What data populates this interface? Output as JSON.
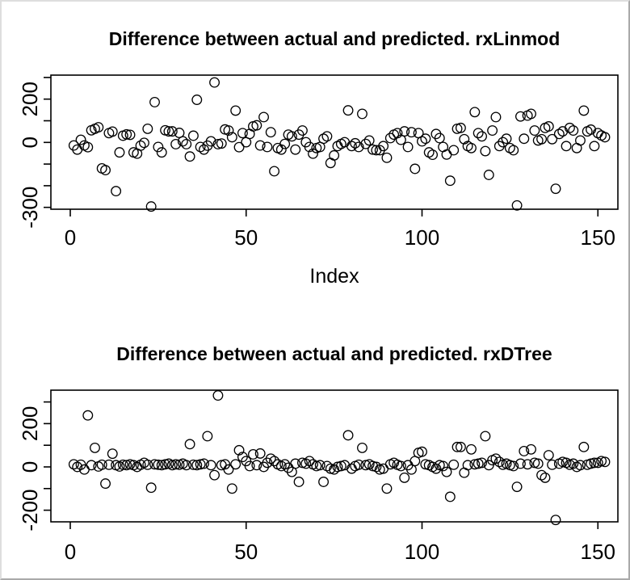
{
  "figure": {
    "background": "#ffffff",
    "frame_color": "#a9a9a9",
    "ink_color": "#000000",
    "marker": "open-circle"
  },
  "chart_data": [
    {
      "type": "scatter",
      "title": "Difference between actual and predicted. rxLinmod",
      "xlabel": "Index",
      "ylabel": "",
      "legend": "none",
      "grid": false,
      "xlim": [
        -5.5,
        155.7
      ],
      "ylim": [
        -308,
        311
      ],
      "x_is_row_index": true,
      "x_ticks": [
        {
          "v": 0,
          "label": "0"
        },
        {
          "v": 50,
          "label": "50"
        },
        {
          "v": 100,
          "label": "100"
        },
        {
          "v": 150,
          "label": "150"
        }
      ],
      "y_ticks": [
        {
          "v": 300,
          "label": ""
        },
        {
          "v": 200,
          "label": "200"
        },
        {
          "v": 100,
          "label": ""
        },
        {
          "v": 0,
          "label": "0"
        },
        {
          "v": -100,
          "label": ""
        },
        {
          "v": -200,
          "label": ""
        },
        {
          "v": -300,
          "label": "-300"
        }
      ],
      "values": [
        -14,
        -33,
        12,
        -14,
        -22,
        56,
        63,
        70,
        -120,
        -128,
        43,
        50,
        -225,
        -46,
        31,
        37,
        35,
        -46,
        -52,
        -15,
        -2,
        63,
        -296,
        186,
        -21,
        -46,
        56,
        51,
        51,
        -8,
        44,
        5,
        -8,
        -65,
        31,
        197,
        -21,
        -33,
        -15,
        5,
        277,
        -8,
        -5,
        60,
        55,
        24,
        147,
        -22,
        43,
        1,
        39,
        74,
        79,
        -14,
        117,
        -21,
        47,
        -133,
        -26,
        -33,
        -7,
        36,
        28,
        -33,
        36,
        55,
        1,
        -21,
        -52,
        -26,
        -21,
        17,
        28,
        -95,
        -60,
        -17,
        -7,
        1,
        148,
        -17,
        -4,
        -21,
        132,
        -7,
        9,
        -33,
        -36,
        -36,
        -17,
        -71,
        20,
        36,
        43,
        12,
        51,
        -21,
        47,
        -122,
        43,
        5,
        17,
        -46,
        -57,
        39,
        20,
        -21,
        -56,
        -177,
        -36,
        63,
        67,
        15,
        -17,
        -26,
        140,
        43,
        28,
        -40,
        -150,
        55,
        117,
        -17,
        1,
        17,
        -26,
        -36,
        -291,
        120,
        17,
        124,
        132,
        55,
        9,
        15,
        67,
        74,
        15,
        -214,
        39,
        51,
        -17,
        67,
        55,
        -26,
        9,
        147,
        51,
        59,
        -17,
        43,
        32,
        24
      ]
    },
    {
      "type": "scatter",
      "title": "Difference between actual and predicted. rxDTree",
      "xlabel": "",
      "ylabel": "",
      "legend": "none",
      "grid": false,
      "xlim": [
        -5.5,
        155.7
      ],
      "ylim": [
        -254,
        354
      ],
      "x_is_row_index": true,
      "x_ticks": [
        {
          "v": 0,
          "label": "0"
        },
        {
          "v": 50,
          "label": "50"
        },
        {
          "v": 100,
          "label": "100"
        },
        {
          "v": 150,
          "label": "150"
        }
      ],
      "y_ticks": [
        {
          "v": 300,
          "label": ""
        },
        {
          "v": 200,
          "label": "200"
        },
        {
          "v": 100,
          "label": ""
        },
        {
          "v": 0,
          "label": "0"
        },
        {
          "v": -100,
          "label": ""
        },
        {
          "v": -200,
          "label": "-200"
        }
      ],
      "values": [
        12,
        0,
        10,
        -12,
        238,
        8,
        88,
        2,
        10,
        -77,
        10,
        61,
        8,
        2,
        10,
        8,
        12,
        8,
        0,
        10,
        19,
        10,
        -96,
        12,
        10,
        8,
        12,
        15,
        8,
        12,
        10,
        15,
        8,
        105,
        10,
        8,
        12,
        15,
        142,
        8,
        -38,
        330,
        8,
        12,
        -12,
        -100,
        12,
        77,
        46,
        27,
        4,
        58,
        8,
        62,
        0,
        19,
        38,
        27,
        12,
        4,
        12,
        -4,
        -23,
        15,
        -69,
        19,
        15,
        27,
        12,
        4,
        8,
        -69,
        4,
        -8,
        -12,
        0,
        4,
        8,
        146,
        -8,
        4,
        10,
        88,
        8,
        12,
        4,
        0,
        -12,
        -8,
        -100,
        12,
        19,
        10,
        4,
        -50,
        8,
        -12,
        27,
        65,
        70,
        12,
        8,
        0,
        -8,
        8,
        4,
        -23,
        -138,
        10,
        92,
        92,
        -27,
        8,
        81,
        12,
        15,
        19,
        142,
        8,
        31,
        38,
        23,
        10,
        15,
        8,
        4,
        -92,
        15,
        73,
        12,
        81,
        19,
        15,
        -38,
        -50,
        54,
        10,
        -245,
        15,
        23,
        19,
        10,
        15,
        0,
        8,
        92,
        10,
        15,
        19,
        19,
        27,
        23
      ]
    }
  ]
}
